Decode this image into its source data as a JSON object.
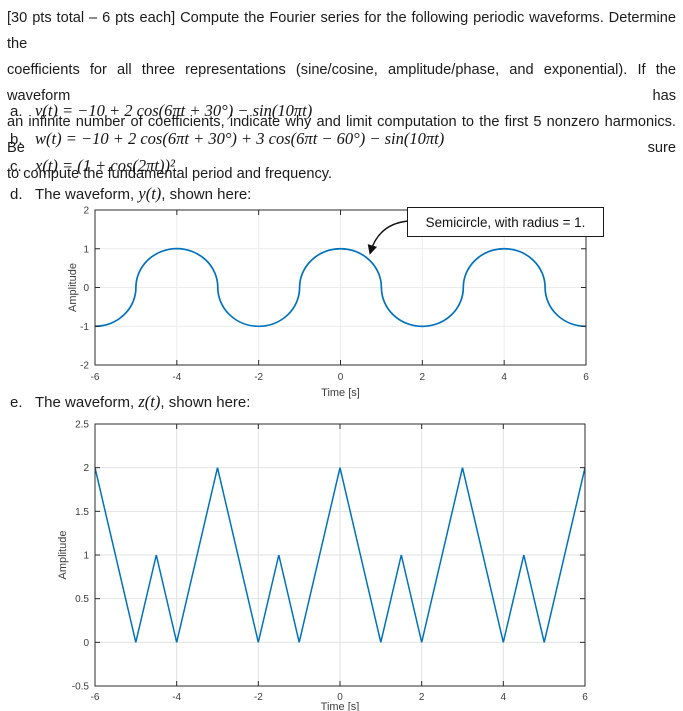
{
  "problem": {
    "intro_lines": [
      "[30 pts total – 6 pts each] Compute the Fourier series for the following periodic waveforms.  Determine the",
      "coefficients for all three representations (sine/cosine, amplitude/phase, and exponential).  If the waveform has",
      "an infinite number of coefficients, indicate why and limit computation to the first 5 nonzero harmonics.  Be sure",
      "to compute the fundamental period and frequency."
    ],
    "items": [
      {
        "label": "a.",
        "parts": [
          {
            "math": true,
            "text": "v(t) = −10 + 2 cos(6πt + 30°) − sin(10πt)"
          }
        ]
      },
      {
        "label": "b.",
        "parts": [
          {
            "math": true,
            "text": "w(t) = −10 + 2 cos(6πt + 30°) + 3 cos(6πt − 60°) − sin(10πt)"
          }
        ]
      },
      {
        "label": "c.",
        "parts": [
          {
            "math": true,
            "text": "x(t) = (1 + cos(2πt))²"
          }
        ]
      },
      {
        "label": "d.",
        "parts": [
          {
            "math": false,
            "text": "The waveform, "
          },
          {
            "math": true,
            "text": "y(t)"
          },
          {
            "math": false,
            "text": ", shown here:"
          }
        ]
      },
      {
        "label": "e.",
        "parts": [
          {
            "math": false,
            "text": "The waveform, "
          },
          {
            "math": true,
            "text": "z(t)"
          },
          {
            "math": false,
            "text": ", shown here:"
          }
        ]
      }
    ]
  },
  "annotation": {
    "text": "Semicircle, with radius = 1."
  },
  "chart_data": [
    {
      "type": "line",
      "title": "",
      "xlabel": "Time [s]",
      "ylabel": "Amplitude",
      "xlim": [
        -6,
        6
      ],
      "ylim": [
        -2,
        2
      ],
      "x_ticks": [
        -6,
        -4,
        -2,
        0,
        2,
        4,
        6
      ],
      "y_ticks": [
        -2,
        -1,
        0,
        1,
        2
      ],
      "grid": true,
      "legend": "none",
      "line_color": "#0072BD",
      "waveform": "alternating upper/lower semicircles of radius 1, period 4 s; value ranges -1 to 1",
      "radius": 1,
      "semicircles": [
        {
          "center": -6,
          "sign": -1
        },
        {
          "center": -4,
          "sign": 1
        },
        {
          "center": -2,
          "sign": -1
        },
        {
          "center": 0,
          "sign": 1
        },
        {
          "center": 2,
          "sign": -1
        },
        {
          "center": 4,
          "sign": 1
        },
        {
          "center": 6,
          "sign": -1
        }
      ]
    },
    {
      "type": "line",
      "title": "",
      "xlabel": "Time [s]",
      "ylabel": "Amplitude",
      "xlim": [
        -6,
        6
      ],
      "ylim": [
        -0.5,
        2.5
      ],
      "x_ticks": [
        -6,
        -4,
        -2,
        0,
        2,
        4,
        6
      ],
      "y_ticks": [
        -0.5,
        0,
        0.5,
        1,
        1.5,
        2,
        2.5
      ],
      "grid": true,
      "legend": "none",
      "line_color": "#0072BD",
      "waveform": "triangle pulse train, period 3 s: tall triangle peak 2 (base width 2) followed by short triangle peak 1 (base width 1)",
      "points": [
        [
          -6,
          2
        ],
        [
          -5,
          0
        ],
        [
          -4.5,
          1
        ],
        [
          -4,
          0
        ],
        [
          -3,
          2
        ],
        [
          -2,
          0
        ],
        [
          -1.5,
          1
        ],
        [
          -1,
          0
        ],
        [
          0,
          2
        ],
        [
          1,
          0
        ],
        [
          1.5,
          1
        ],
        [
          2,
          0
        ],
        [
          3,
          2
        ],
        [
          4,
          0
        ],
        [
          4.5,
          1
        ],
        [
          5,
          0
        ],
        [
          6,
          2
        ]
      ]
    }
  ]
}
